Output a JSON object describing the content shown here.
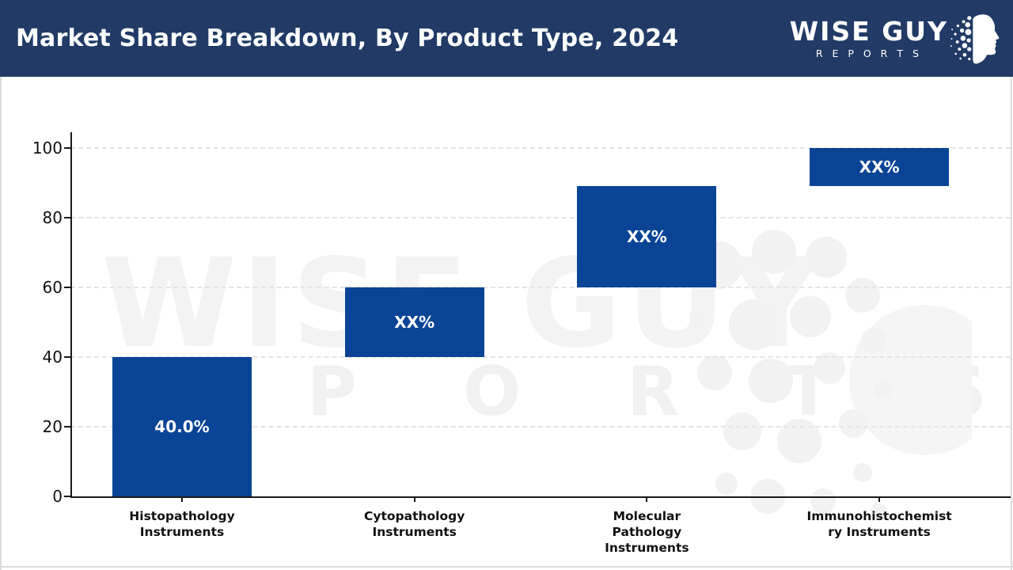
{
  "header": {
    "title": "Market Share Breakdown, By Product Type, 2024",
    "logo": {
      "wordmark": "WISE GUY",
      "subtext": "R E P O R T S",
      "head_icon": "dotted-face-profile"
    }
  },
  "watermark": {
    "line1": "WISE GUY",
    "line2": "P O R T S",
    "head_icon": "dotted-face-profile"
  },
  "chart_data": {
    "type": "bar",
    "subtype": "waterfall",
    "title": "Market Share Breakdown, By Product Type, 2024",
    "categories": [
      "Histopathology Instruments",
      "Cytopathology Instruments",
      "Molecular Pathology Instruments",
      "Immunohistochemistry Instruments"
    ],
    "category_label_lines": [
      [
        "Histopathology",
        "Instruments"
      ],
      [
        "Cytopathology",
        "Instruments"
      ],
      [
        "Molecular",
        "Pathology",
        "Instruments"
      ],
      [
        "Immunohistochemist",
        "ry Instruments"
      ]
    ],
    "segments": [
      {
        "category": "Histopathology Instruments",
        "start": 0,
        "end": 40,
        "value": 40,
        "label": "40.0%"
      },
      {
        "category": "Cytopathology Instruments",
        "start": 40,
        "end": 60,
        "value": 20,
        "label": "XX%"
      },
      {
        "category": "Molecular Pathology Instruments",
        "start": 60,
        "end": 89,
        "value": 29,
        "label": "XX%"
      },
      {
        "category": "Immunohistochemistry Instruments",
        "start": 89,
        "end": 100,
        "value": 11,
        "label": "XX%"
      }
    ],
    "xlabel": "",
    "ylabel": "",
    "ylim": [
      0,
      100
    ],
    "yticks": [
      0,
      20,
      40,
      60,
      80,
      100
    ],
    "grid": "horizontal-dashed",
    "legend": "none",
    "bar_color": "#0A4496",
    "bar_label_color": "#ffffff"
  },
  "colors": {
    "header_bg": "#213A66",
    "title_text": "#ffffff",
    "bar": "#0A4496",
    "axis": "#1a1a1a",
    "gridline": "#e4e4e4",
    "watermark": "#f3f3f3",
    "frame": "#dcdcdc"
  }
}
